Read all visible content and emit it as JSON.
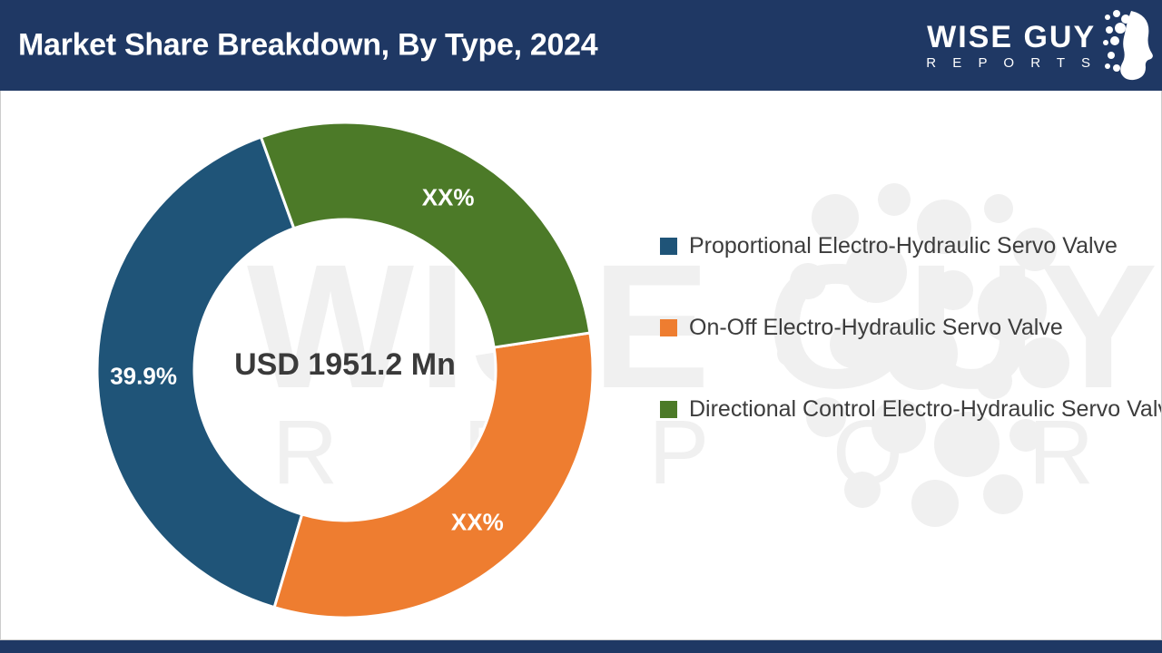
{
  "header": {
    "title": "Market Share Breakdown, By Type, 2024",
    "bg_color": "#1F3864",
    "logo": {
      "line1": "WISE GUY",
      "line2": "R E P O R T S"
    }
  },
  "watermark": {
    "line1": "WISE GUY",
    "line2": "R E P O R T S"
  },
  "chart_data": {
    "type": "pie",
    "donut": true,
    "title": "Market Share Breakdown, By Type, 2024",
    "center_label": "USD 1951.2 Mn",
    "start_angle_deg": 109.8,
    "direction": "counterclockwise",
    "inner_radius_ratio": 0.61,
    "legend_position": "right",
    "segments": [
      {
        "label": "Proportional Electro-Hydraulic Servo Valve",
        "value_pct": 39.9,
        "display_label": "39.9%",
        "color": "#1F5478"
      },
      {
        "label": "On-Off Electro-Hydraulic Servo Valve",
        "value_pct": 32.0,
        "display_label": "XX%",
        "color": "#EE7D30"
      },
      {
        "label": "Directional Control Electro-Hydraulic Servo Valve",
        "value_pct": 28.1,
        "display_label": "XX%",
        "color": "#4C7A28"
      }
    ]
  },
  "footer": {
    "bg_color": "#1F3864"
  }
}
